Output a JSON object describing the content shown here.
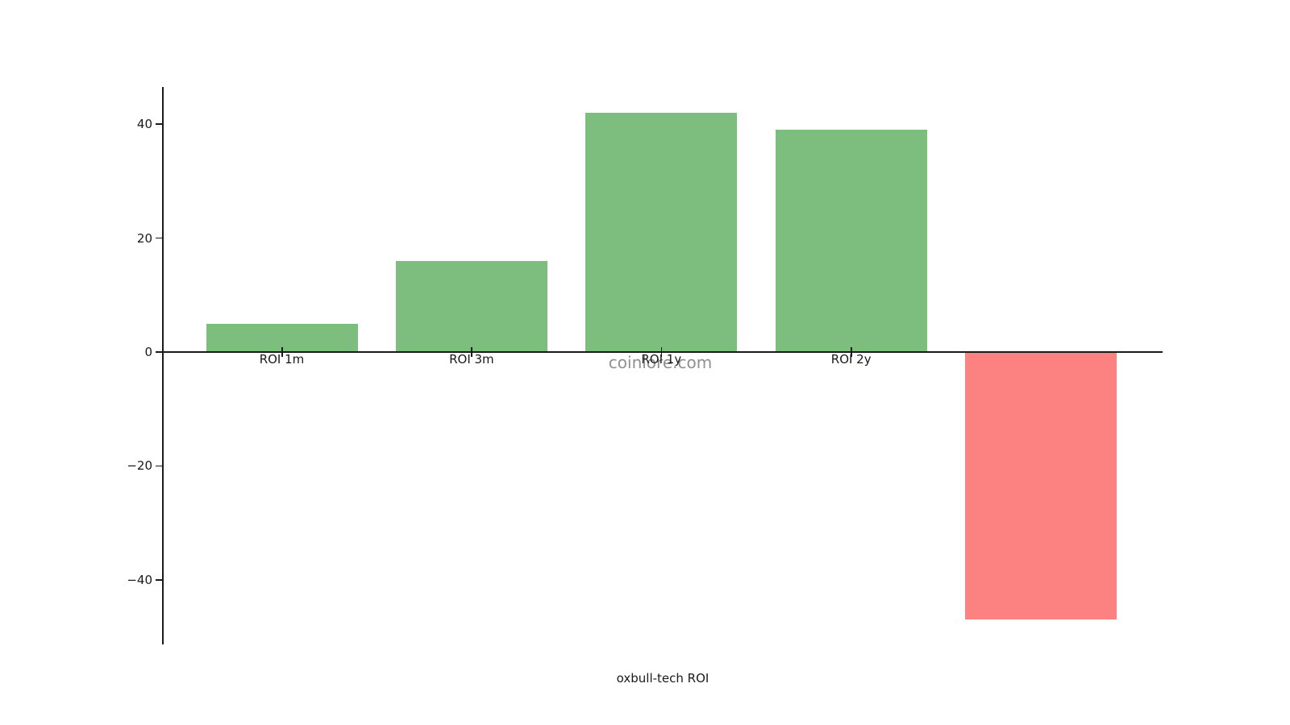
{
  "figure": {
    "background": "#ffffff"
  },
  "chart_data": {
    "type": "bar",
    "title": "oxbull-tech ROI",
    "categories": [
      "ROI 1m",
      "ROI 3m",
      "ROI 1y",
      "ROI 2y",
      ""
    ],
    "values": [
      5,
      16,
      42,
      39,
      -47
    ],
    "yticks": [
      40,
      20,
      0,
      -20,
      -40
    ],
    "ytick_labels": [
      "40",
      "20",
      "0",
      "−20",
      "−40"
    ],
    "ylim": [
      -51.3,
      46.5
    ],
    "xlabel": "",
    "ylabel": "",
    "grid": false,
    "legend_position": "none",
    "positive_color": "#7dbd7d",
    "negative_color": "#fc8181",
    "axis_color": "#1a1a1a",
    "watermark": "coinlore.com",
    "watermark_color": "#8f8f8f"
  }
}
